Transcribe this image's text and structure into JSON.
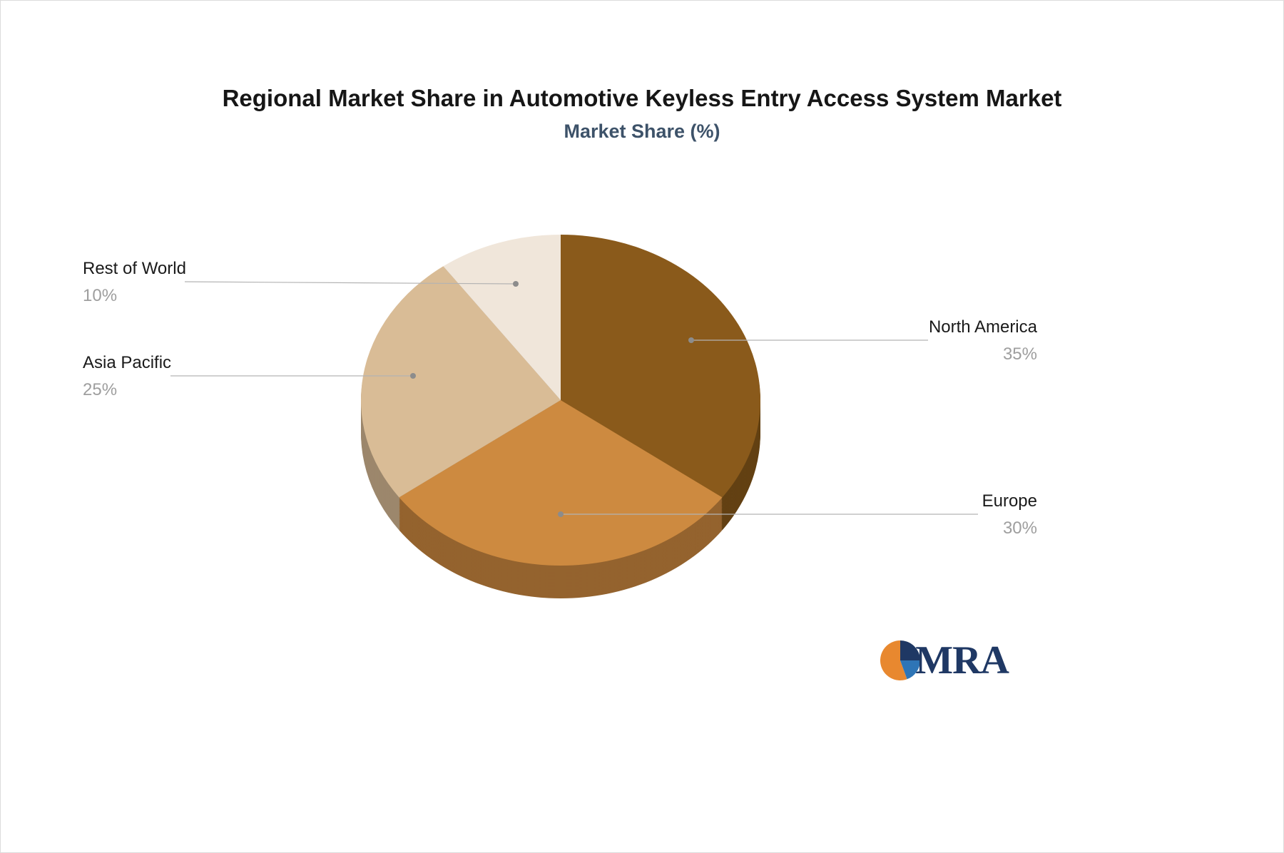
{
  "page": {
    "background": "#ffffff"
  },
  "chart_data": {
    "type": "pie",
    "title": "Regional Market Share in Automotive Keyless Entry Access System Market",
    "subtitle": "Market Share (%)",
    "unit": "%",
    "effect": "3d",
    "start_angle_deg": 0,
    "direction": "clockwise",
    "legend": false,
    "categories": [
      "North America",
      "Europe",
      "Asia Pacific",
      "Rest of World"
    ],
    "values": [
      35,
      30,
      25,
      10
    ],
    "colors": [
      "#8a5a1b",
      "#cd8a40",
      "#d9bc96",
      "#f0e6da"
    ],
    "callouts": [
      {
        "label": "North America",
        "value": "35%",
        "side": "right"
      },
      {
        "label": "Europe",
        "value": "30%",
        "side": "right"
      },
      {
        "label": "Asia Pacific",
        "value": "25%",
        "side": "left"
      },
      {
        "label": "Rest of World",
        "value": "10%",
        "side": "left"
      }
    ],
    "label_color": "#1a1a1a",
    "value_color": "#9e9e9e",
    "leader_line_color": "#b3b3b3"
  },
  "logo": {
    "text": "MRA",
    "text_color": "#1f3864",
    "icon_colors": [
      "#e8882f",
      "#1f3864",
      "#2e75b6"
    ]
  }
}
